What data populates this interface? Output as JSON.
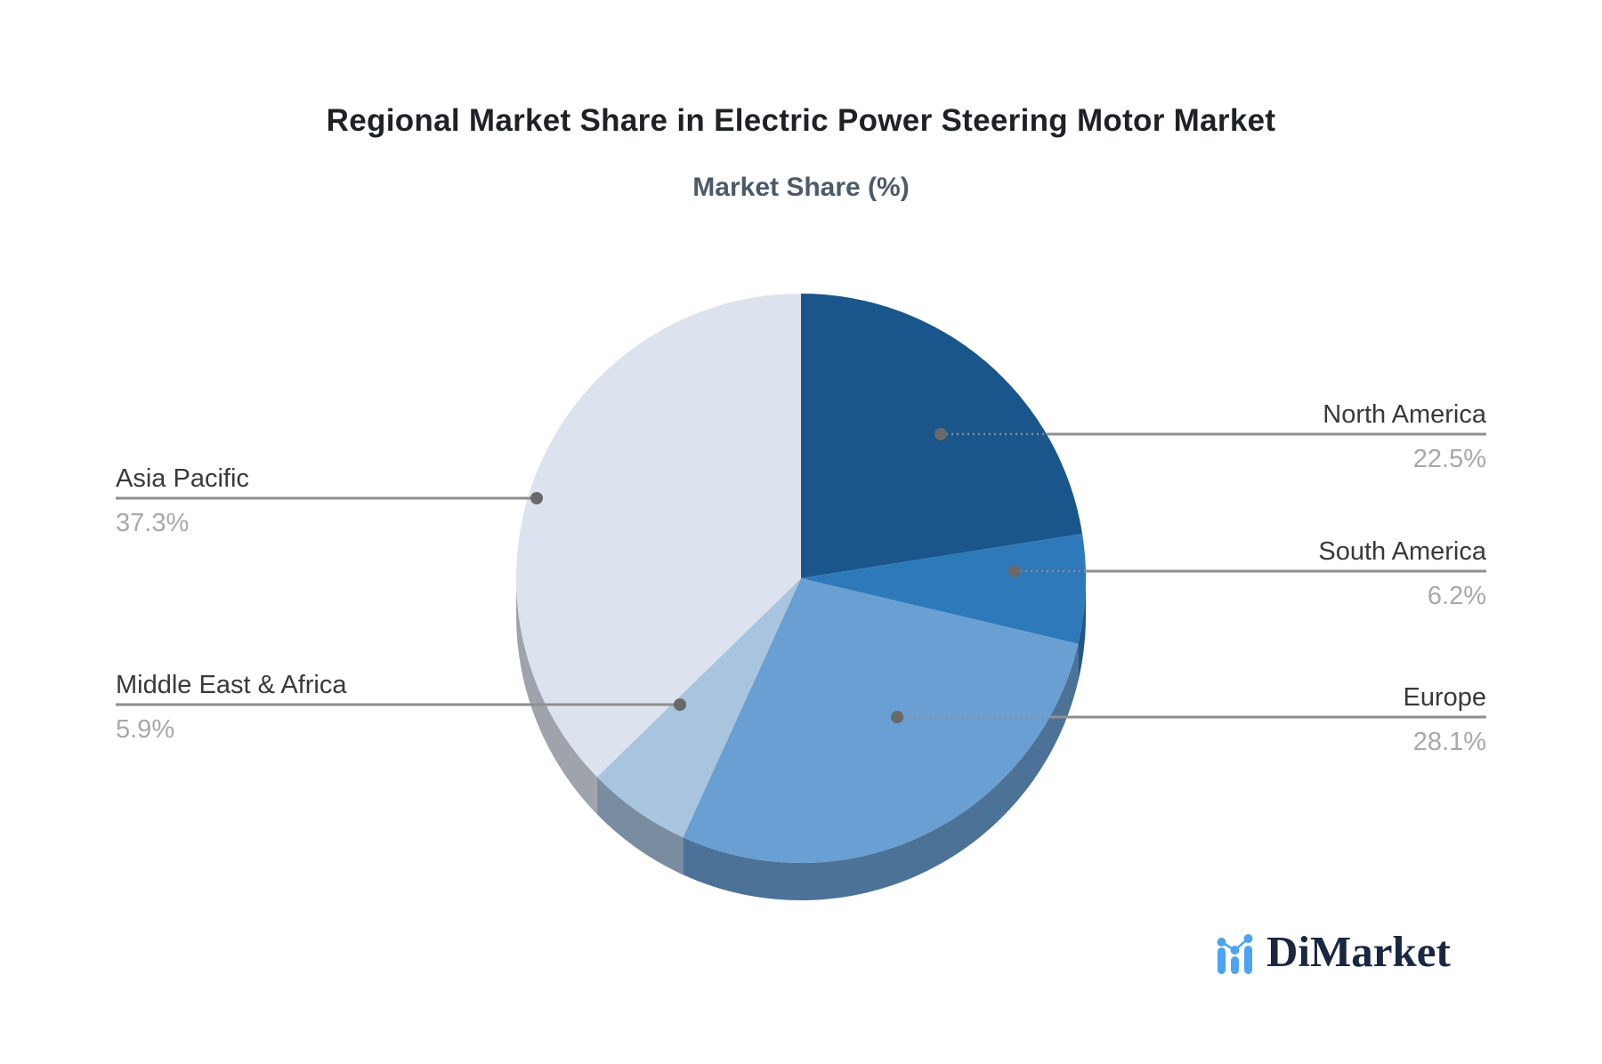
{
  "header": {
    "title": "Regional Market Share in Electric Power Steering Motor Market",
    "subtitle": "Market Share (%)"
  },
  "chart_data": {
    "type": "pie",
    "title": "Regional Market Share in Electric Power Steering Motor Market",
    "subtitle": "Market Share (%)",
    "unit": "%",
    "direction": "clockwise",
    "start_angle_deg": 0,
    "effect": "3d-extruded",
    "legend_position": "callout-labels",
    "series": [
      {
        "label": "North America",
        "value": 22.5,
        "value_label": "22.5%",
        "color": "#1a568b"
      },
      {
        "label": "South America",
        "value": 6.2,
        "value_label": "6.2%",
        "color": "#2e79ba"
      },
      {
        "label": "Europe",
        "value": 28.1,
        "value_label": "28.1%",
        "color": "#699fd2"
      },
      {
        "label": "Middle East & Africa",
        "value": 5.9,
        "value_label": "5.9%",
        "color": "#a9c4de"
      },
      {
        "label": "Asia Pacific",
        "value": 37.3,
        "value_label": "37.3%",
        "color": "#dde3ee"
      }
    ]
  },
  "branding": {
    "logo_text": "DiMarket",
    "logo_icon": "mini-bar-line-chart-icon"
  },
  "colors": {
    "background": "#ffffff",
    "title": "#1e2227",
    "subtitle": "#4d5a68",
    "label_name": "#37393c",
    "label_value": "#a6a9ad",
    "leader_line": "#8f8f8f",
    "leader_dot": "#696969",
    "logo_text": "#1a2742",
    "logo_icon": "#4da3f2"
  }
}
